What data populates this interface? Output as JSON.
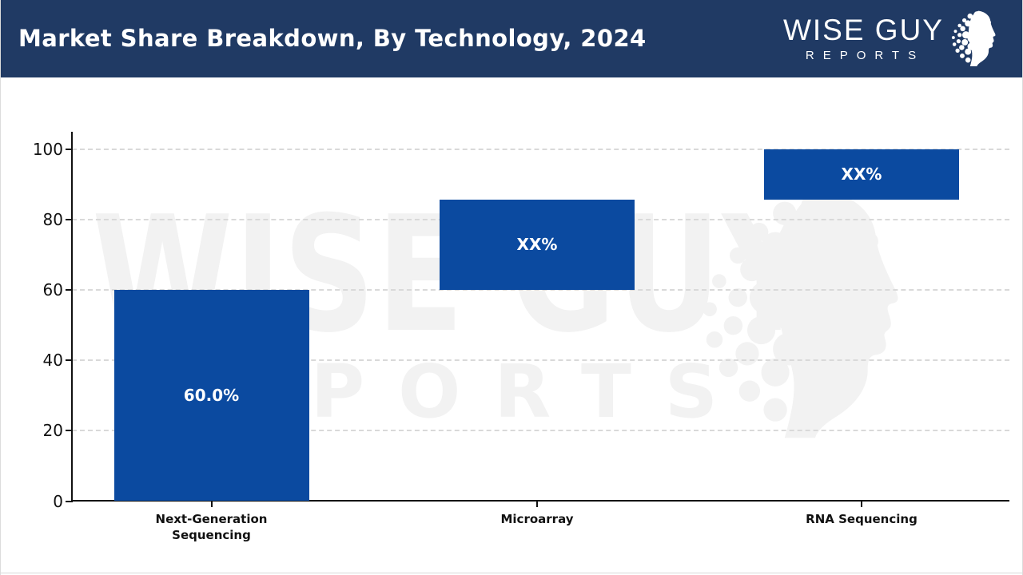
{
  "header": {
    "title": "Market Share Breakdown, By Technology, 2024",
    "logo": {
      "name_line": "WISE GUY",
      "sub_line": "REPORTS"
    }
  },
  "watermark": {
    "name_line": "WISE GUY",
    "sub_line": "REPORTS"
  },
  "chart_data": {
    "type": "bar",
    "variant": "waterfall-stacked-segments",
    "title": "Market Share Breakdown, By Technology, 2024",
    "categories": [
      "Next-Generation\nSequencing",
      "Microarray",
      "RNA Sequencing"
    ],
    "segments": [
      {
        "category": "Next-Generation Sequencing",
        "start": 0,
        "end": 60,
        "label": "60.0%"
      },
      {
        "category": "Microarray",
        "start": 60,
        "end": 85.7,
        "label": "XX%"
      },
      {
        "category": "RNA Sequencing",
        "start": 85.7,
        "end": 100,
        "label": "XX%"
      }
    ],
    "yticks": [
      0,
      20,
      40,
      60,
      80,
      100
    ],
    "ylim": [
      0,
      100
    ],
    "xlabel": "",
    "ylabel": "",
    "grid": "horizontal-dashed",
    "legend": "none",
    "bar_color": "#0b4aa0",
    "bar_label_color": "#ffffff"
  },
  "colors": {
    "header_bg": "#203a64",
    "bar": "#0b4aa0",
    "grid_line": "#d9d9d9",
    "axis": "#111111",
    "watermark": "#f2f2f2"
  }
}
